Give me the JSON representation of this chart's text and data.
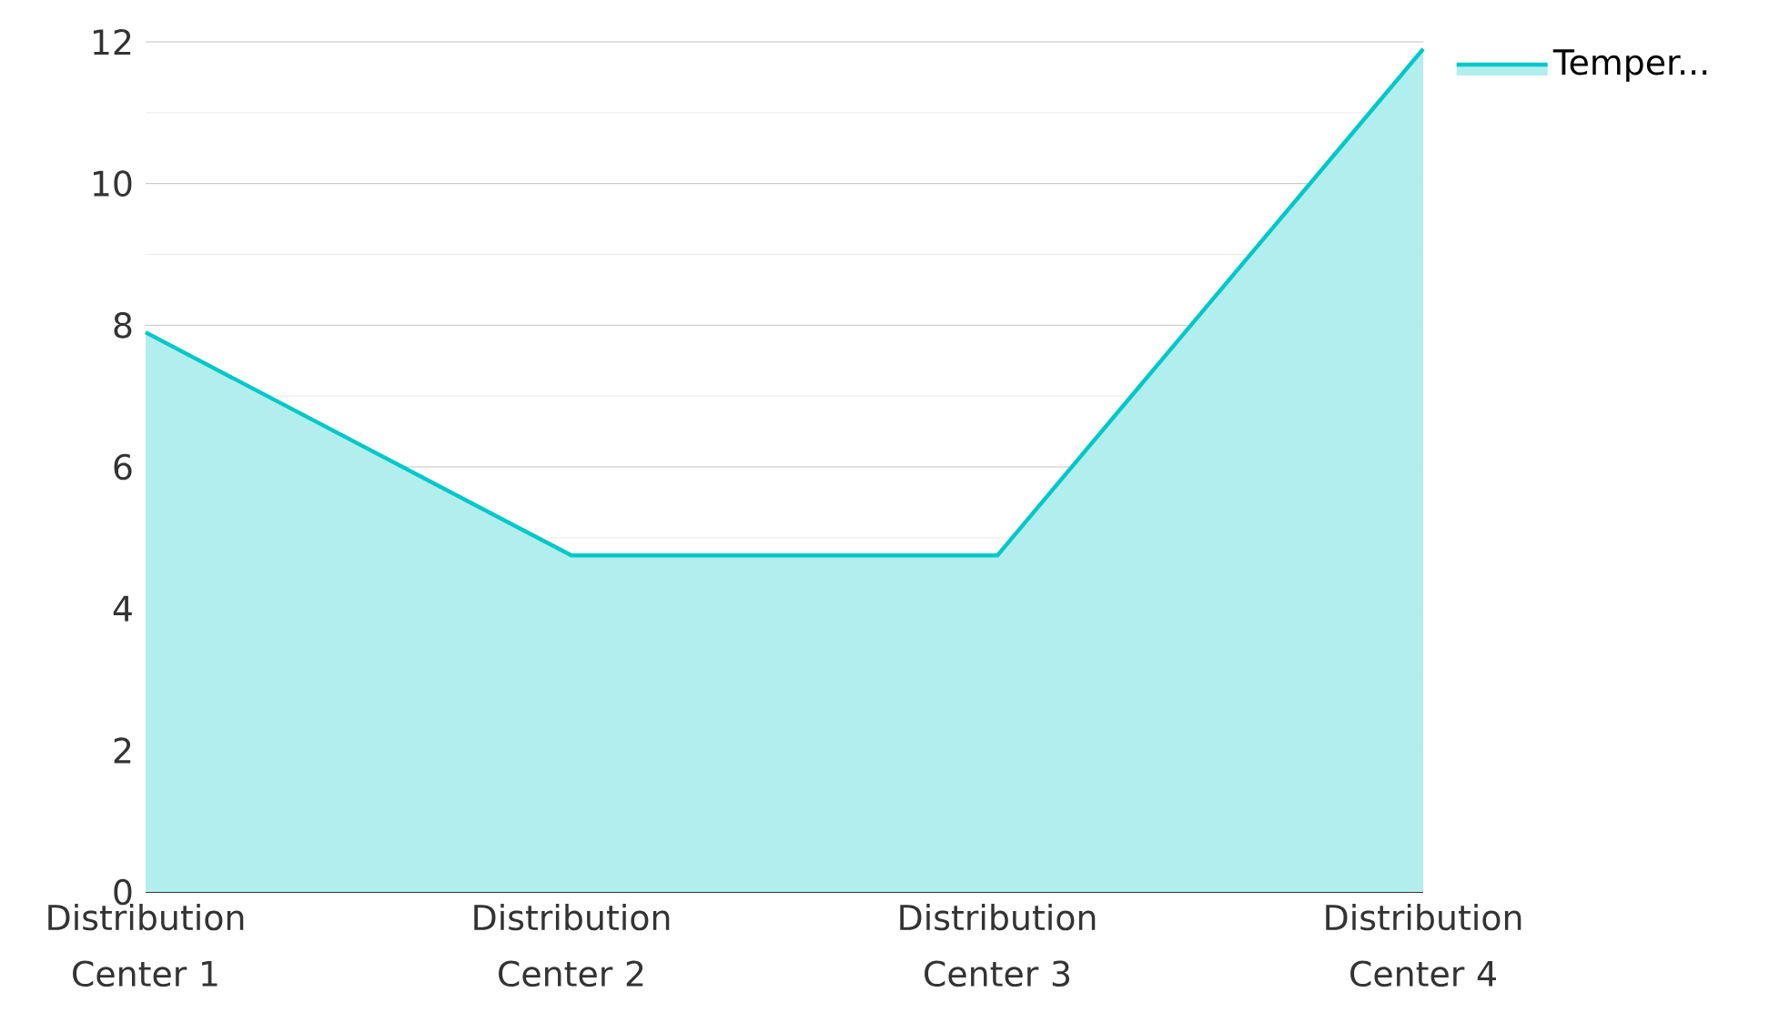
{
  "chart_data": {
    "type": "area",
    "categories": [
      "Distribution Center 1",
      "Distribution Center 2",
      "Distribution Center 3",
      "Distribution Center 4"
    ],
    "series": [
      {
        "name": "Temper...",
        "color": "#00c8c8",
        "values": [
          7.9,
          4.75,
          4.75,
          11.9
        ]
      }
    ],
    "ylim": [
      0,
      12
    ],
    "yticks": [
      0,
      2,
      4,
      6,
      8,
      10,
      12
    ],
    "grid": "y",
    "legend": "top right"
  }
}
